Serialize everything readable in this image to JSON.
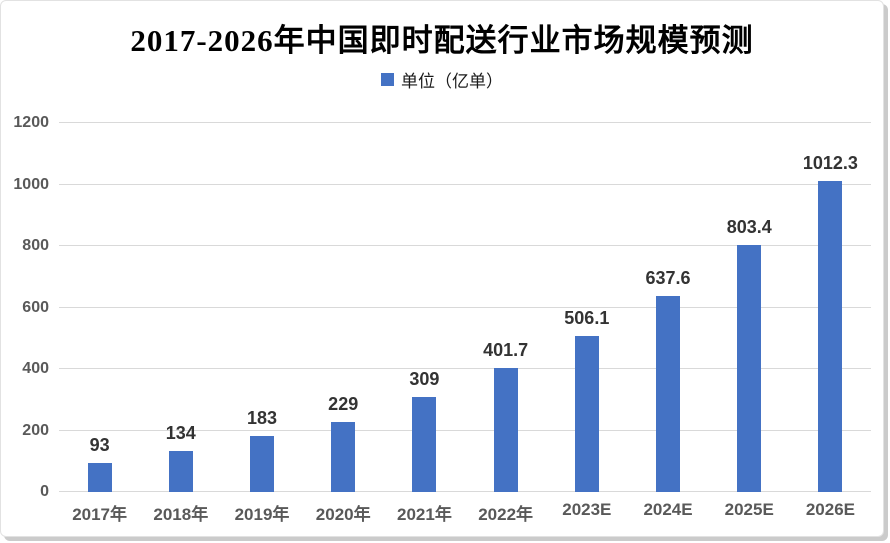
{
  "chart_data": {
    "type": "bar",
    "title": "2017-2026年中国即时配送行业市场规模预测",
    "legend": "单位（亿单）",
    "legend_position": "top-center",
    "categories": [
      "2017年",
      "2018年",
      "2019年",
      "2020年",
      "2021年",
      "2022年",
      "2023E",
      "2024E",
      "2025E",
      "2026E"
    ],
    "values": [
      93,
      134,
      183,
      229,
      309,
      401.7,
      506.1,
      637.6,
      803.4,
      1012.3
    ],
    "value_labels": [
      "93",
      "134",
      "183",
      "229",
      "309",
      "401.7",
      "506.1",
      "637.6",
      "803.4",
      "1012.3"
    ],
    "xlabel": "",
    "ylabel": "",
    "ylim": [
      0,
      1200
    ],
    "y_ticks": [
      0,
      200,
      400,
      600,
      800,
      1000,
      1200
    ],
    "grid": true,
    "bar_color": "#4472C4",
    "gridline_color": "#d9d9d9",
    "axis_label_color": "#595959",
    "value_label_color": "#333333"
  }
}
